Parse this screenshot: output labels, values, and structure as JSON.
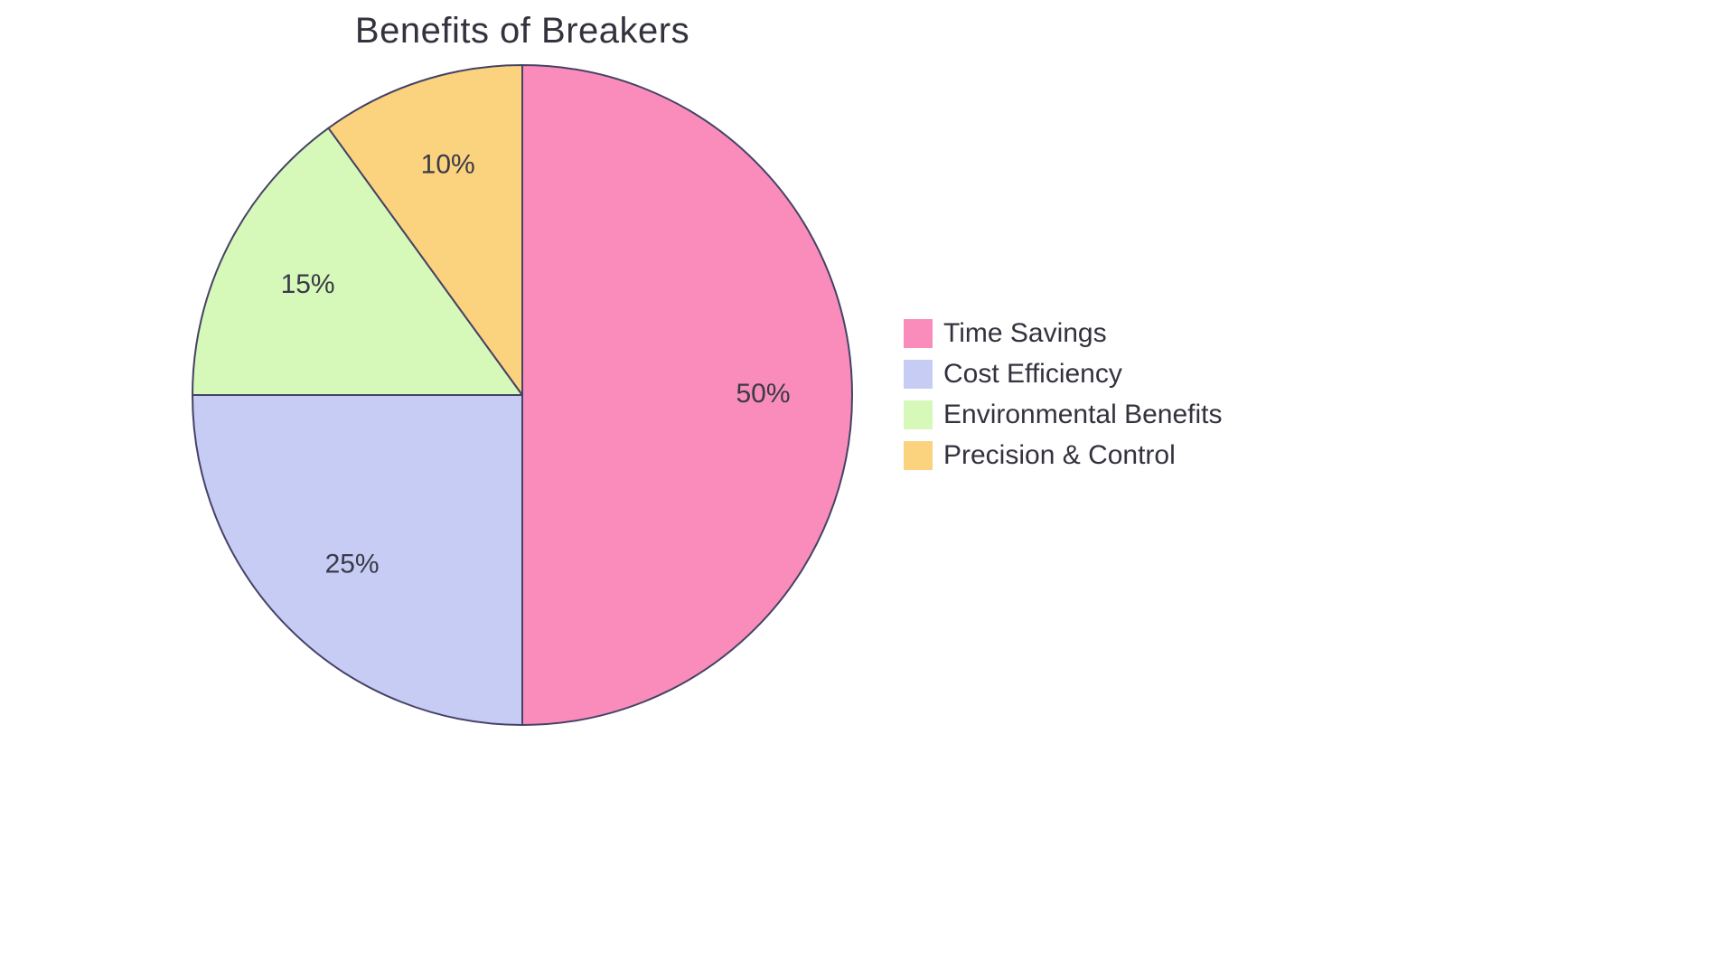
{
  "chart_data": {
    "type": "pie",
    "title": "Benefits of Breakers",
    "direction": "clockwise",
    "start_angle_deg": 0,
    "legend_position": "right",
    "stroke_color": "#454266",
    "text_color": "#3A3A48",
    "slices": [
      {
        "label": "Time Savings",
        "value": 50,
        "pct_label": "50%",
        "color": "#F98CBA"
      },
      {
        "label": "Cost Efficiency",
        "value": 25,
        "pct_label": "25%",
        "color": "#C6CCF4"
      },
      {
        "label": "Environmental Benefits",
        "value": 15,
        "pct_label": "15%",
        "color": "#D6F8B8"
      },
      {
        "label": "Precision & Control",
        "value": 10,
        "pct_label": "10%",
        "color": "#FBD37E"
      }
    ]
  }
}
